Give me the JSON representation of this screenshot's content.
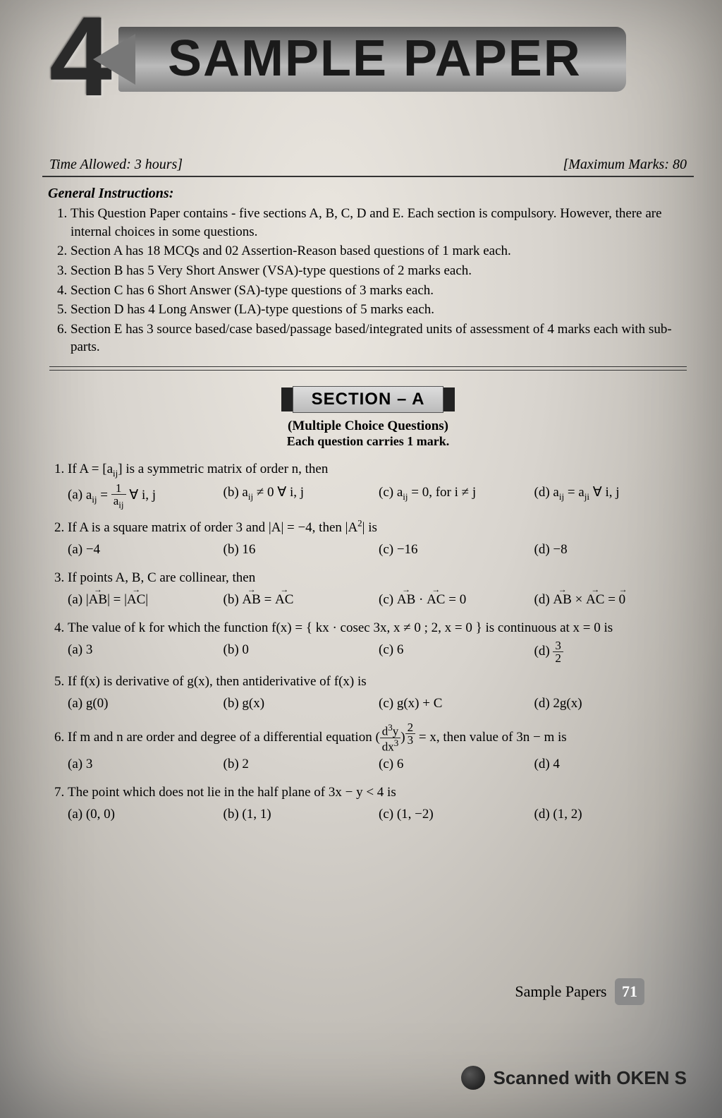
{
  "header": {
    "paper_number": "4",
    "title": "SAMPLE PAPER"
  },
  "meta": {
    "time_label": "Time Allowed: 3 hours]",
    "marks_label": "[Maximum Marks: 80"
  },
  "instructions": {
    "heading": "General Instructions:",
    "items": [
      "This Question Paper contains - five sections A, B, C, D and E. Each section is compulsory. However, there are internal choices in some questions.",
      "Section A has 18 MCQs and 02 Assertion-Reason based questions of 1 mark each.",
      "Section B has 5 Very Short Answer (VSA)-type questions of 2 marks each.",
      "Section C has 6 Short Answer (SA)-type questions of 3 marks each.",
      "Section D has 4 Long Answer (LA)-type questions of 5 marks each.",
      "Section E has 3 source based/case based/passage based/integrated units of assessment of 4 marks each with sub-parts."
    ]
  },
  "section": {
    "label": "SECTION – A",
    "sub1": "(Multiple Choice Questions)",
    "sub2": "Each question carries 1 mark."
  },
  "questions": [
    {
      "stem_html": "If A = [a<sub>ij</sub>] is a symmetric matrix of order n, then",
      "opts": [
        "a<sub>ij</sub> = <span class='frac'><span class='n'>1</span><span class='d'>a<sub>ij</sub></span></span> ∀ i, j",
        "a<sub>ij</sub> ≠ 0 ∀ i, j",
        "a<sub>ij</sub> = 0, for i ≠ j",
        "a<sub>ij</sub> = a<sub>ji</sub> ∀ i, j"
      ]
    },
    {
      "stem_html": "If A is a square matrix of order 3 and |A| = −4, then |A<sup>2</sup>| is",
      "opts": [
        "−4",
        "16",
        "−16",
        "−8"
      ]
    },
    {
      "stem_html": "If points A, B, C are collinear, then",
      "opts": [
        "|<span class='vec'>AB</span>| = |<span class='vec'>AC</span>|",
        "<span class='vec'>AB</span> = <span class='vec'>AC</span>",
        "<span class='vec'>AB</span> · <span class='vec'>AC</span> = 0",
        "<span class='vec'>AB</span> × <span class='vec'>AC</span> = <span class='vec'>0</span>"
      ]
    },
    {
      "stem_html": "The value of k for which the function f(x) = { kx · cosec 3x,  x ≠ 0 ;  2,  x = 0 } is continuous at x = 0 is",
      "opts": [
        "3",
        "0",
        "6",
        "<span class='frac'><span class='n'>3</span><span class='d'>2</span></span>"
      ]
    },
    {
      "stem_html": "If f(x) is derivative of g(x), then antiderivative of f(x) is",
      "opts": [
        "g(0)",
        "g(x)",
        "g(x) + C",
        "2g(x)"
      ]
    },
    {
      "stem_html": "If m and n are order and degree of a differential equation (<span class='frac'><span class='n'>d<sup>3</sup>y</span><span class='d'>dx<sup>3</sup></span></span>)<sup><span class='frac'><span class='n'>2</span><span class='d'>3</span></span></sup> = x, then value of 3n − m is",
      "opts": [
        "3",
        "2",
        "6",
        "4"
      ]
    },
    {
      "stem_html": "The point which does not lie in the half plane of 3x − y < 4 is",
      "opts": [
        "(0, 0)",
        "(1, 1)",
        "(1, −2)",
        "(1, 2)"
      ]
    }
  ],
  "footer": {
    "label": "Sample Papers",
    "page": "71"
  },
  "scanned": "Scanned with OKEN S"
}
